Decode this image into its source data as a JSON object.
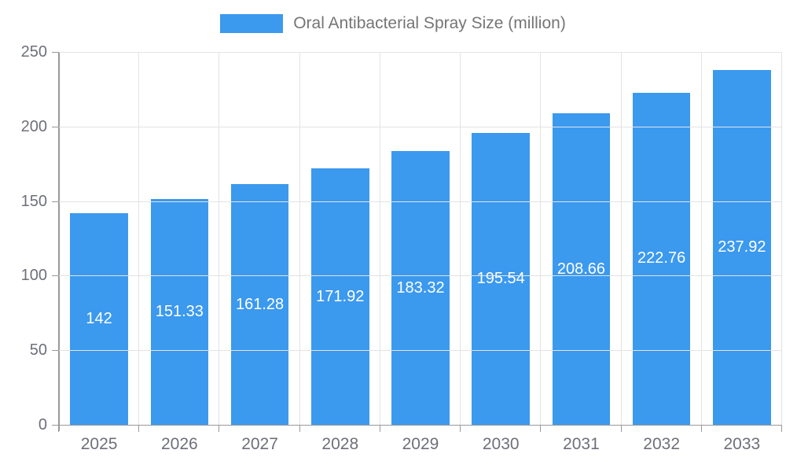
{
  "chart_data": {
    "type": "bar",
    "title": "Oral Antibacterial Spray Size (million)",
    "categories": [
      "2025",
      "2026",
      "2027",
      "2028",
      "2029",
      "2030",
      "2031",
      "2032",
      "2033"
    ],
    "series": [
      {
        "name": "Oral Antibacterial Spray Size (million)",
        "values": [
          142,
          151.33,
          161.28,
          171.92,
          183.32,
          195.54,
          208.66,
          222.76,
          237.92
        ]
      }
    ],
    "value_labels": [
      "142",
      "151.33",
      "161.28",
      "171.92",
      "183.32",
      "195.54",
      "208.66",
      "222.76",
      "237.92"
    ],
    "xlabel": "",
    "ylabel": "",
    "ylim": [
      0,
      250
    ],
    "yticks": [
      0,
      50,
      100,
      150,
      200,
      250
    ],
    "ytick_labels": [
      "0",
      "50",
      "100",
      "150",
      "200",
      "250"
    ],
    "grid": true,
    "legend_position": "top"
  },
  "legend": {
    "label": "Oral Antibacterial Spray Size (million)"
  },
  "colors": {
    "bar": "#3B99EE",
    "bar_label_text": "#ffffff",
    "axis_line": "#999999",
    "tick_label_text": "#6E7079",
    "legend_text": "#757575",
    "gridline": "#E3E3E6",
    "background": "#ffffff"
  }
}
